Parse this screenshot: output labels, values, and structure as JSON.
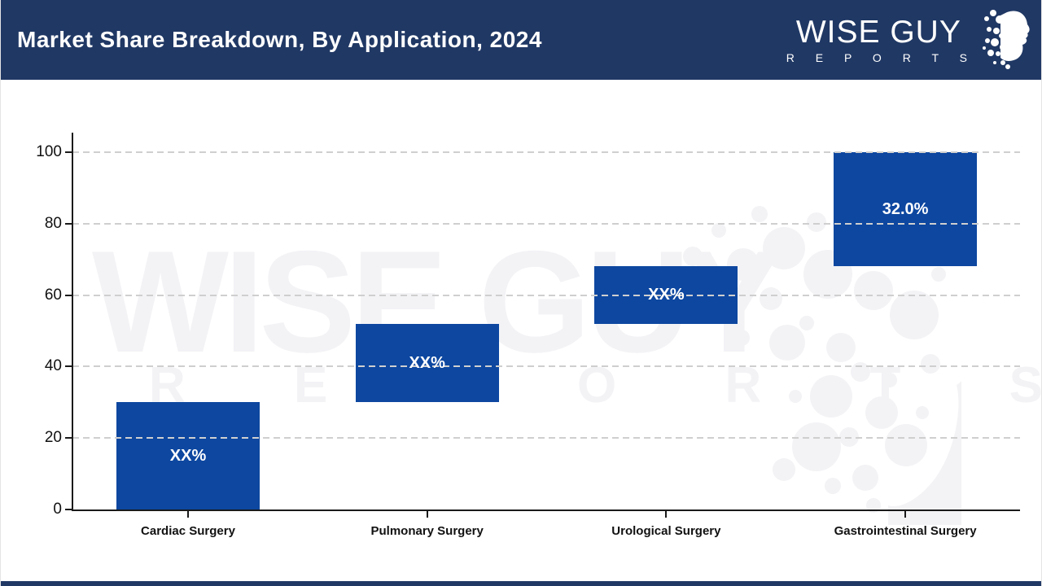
{
  "header": {
    "title": "Market Share Breakdown, By Application, 2024",
    "bg_color": "#203864",
    "logo": {
      "line1": "WISE GUY",
      "line2": "R E P O R T S"
    }
  },
  "watermark": {
    "line1": "WISE GUY",
    "line2": "R E P O R T S"
  },
  "chart_data": {
    "type": "bar",
    "subtype": "waterfall-stacked-percent",
    "title": "Market Share Breakdown, By Application, 2024",
    "categories": [
      "Cardiac Surgery",
      "Pulmonary Surgery",
      "Urological Surgery",
      "Gastrointestinal Surgery"
    ],
    "segments": [
      {
        "category": "Cardiac Surgery",
        "start": 0,
        "end": 30,
        "label": "XX%"
      },
      {
        "category": "Pulmonary Surgery",
        "start": 30,
        "end": 52,
        "label": "XX%"
      },
      {
        "category": "Urological Surgery",
        "start": 52,
        "end": 68,
        "label": "XX%"
      },
      {
        "category": "Gastrointestinal Surgery",
        "start": 68,
        "end": 100,
        "label": "32.0%"
      }
    ],
    "ylim": [
      0,
      100
    ],
    "yticks": [
      0,
      20,
      40,
      60,
      80,
      100
    ],
    "xlabel": "",
    "ylabel": "",
    "grid": "horizontal-dashed",
    "legend": "none",
    "bar_color": "#0d47a0",
    "bar_label_color": "#ffffff",
    "axis_color": "#1a1a1a",
    "gridline_color": "#cfcfcf"
  }
}
